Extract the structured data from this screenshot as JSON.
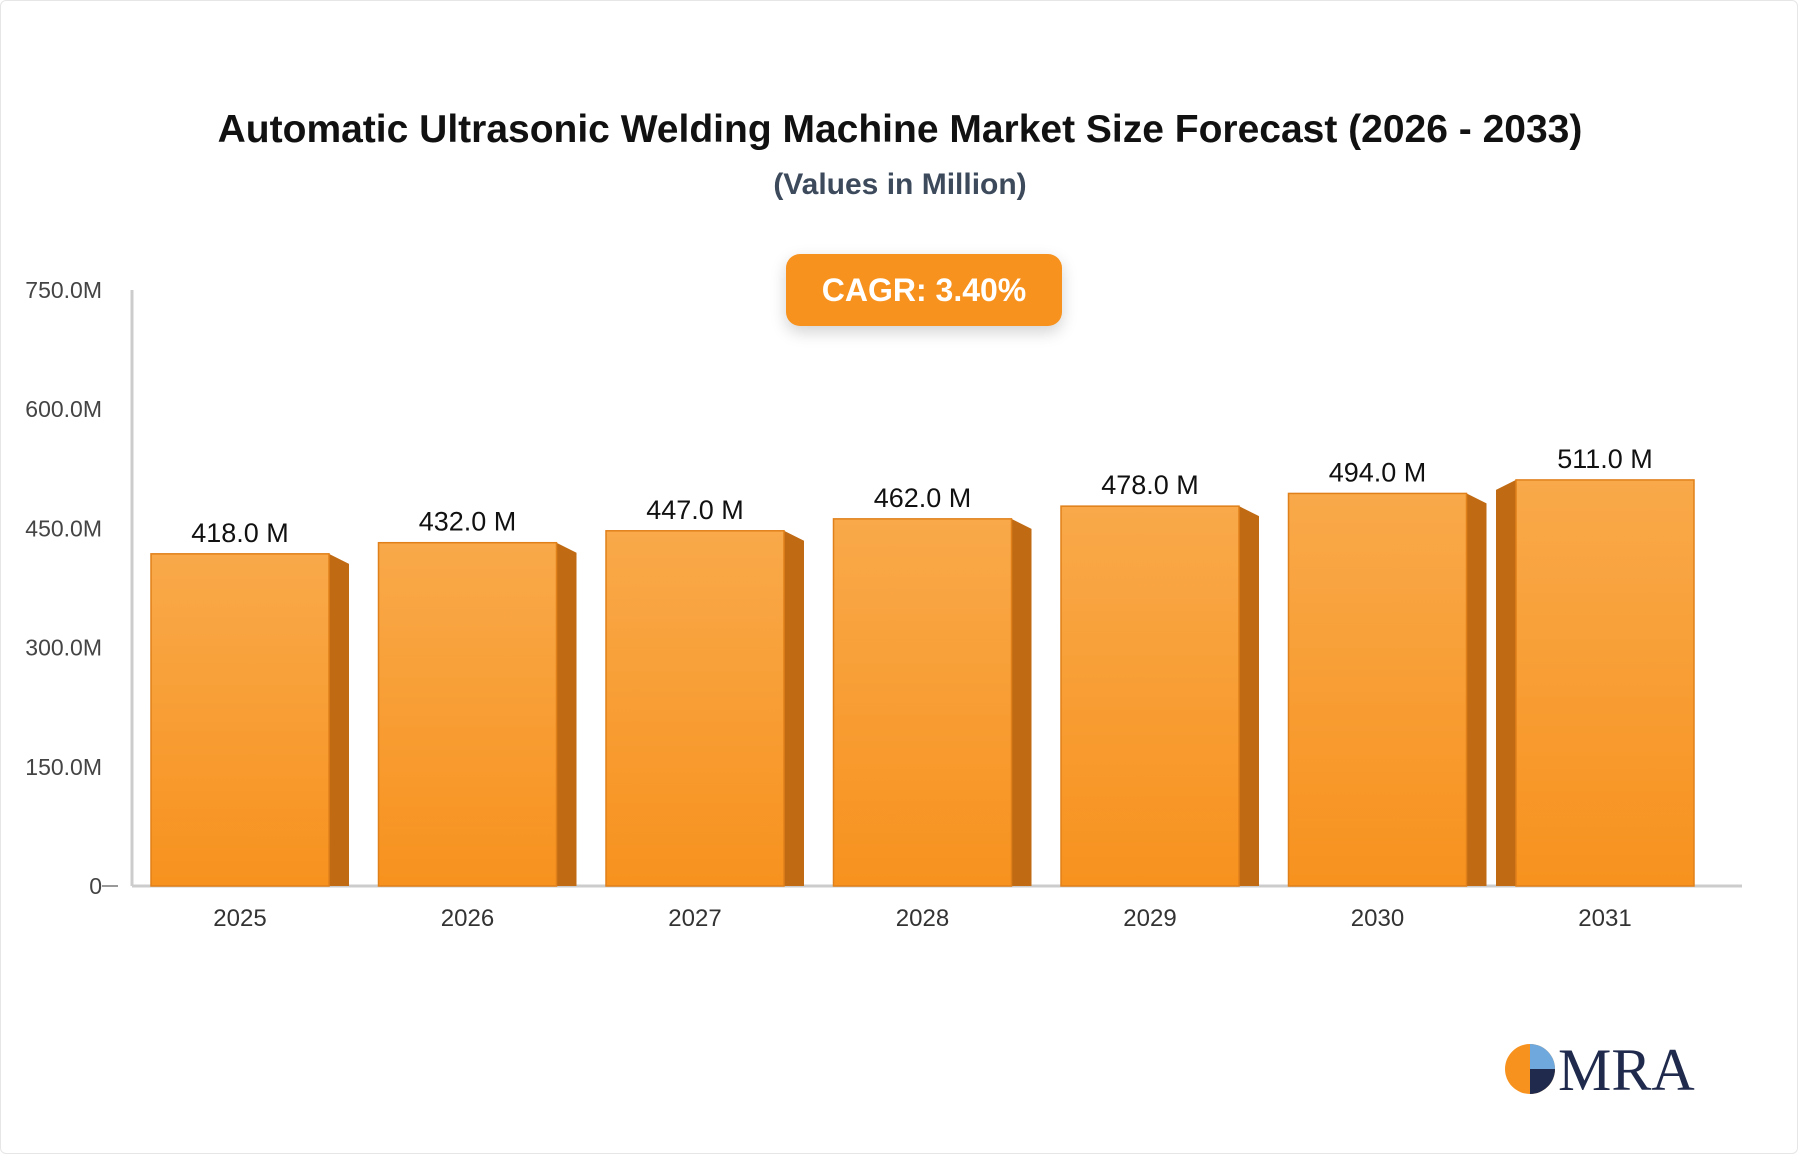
{
  "chart_data": {
    "type": "bar",
    "title": "Automatic Ultrasonic Welding Machine Market Size Forecast (2026 - 2033)",
    "subtitle": "(Values in Million)",
    "annotation": "CAGR: 3.40%",
    "categories": [
      "2025",
      "2026",
      "2027",
      "2028",
      "2029",
      "2030",
      "2031"
    ],
    "values": [
      418.0,
      432.0,
      447.0,
      462.0,
      478.0,
      494.0,
      511.0
    ],
    "data_labels": [
      "418.0 M",
      "432.0 M",
      "447.0 M",
      "462.0 M",
      "478.0 M",
      "494.0 M",
      "511.0 M"
    ],
    "y_ticks": [
      0,
      150,
      300,
      450,
      600,
      750
    ],
    "y_tick_labels": [
      "0",
      "150.0M",
      "300.0M",
      "450.0M",
      "600.0M",
      "750.0M"
    ],
    "ylim": [
      0,
      750
    ],
    "xlabel": "",
    "ylabel": "",
    "grid": false,
    "colors": {
      "bar_front": "#f7941f",
      "bar_front_light": "#f9a94a",
      "bar_side": "#c06a13",
      "bar_edge": "#e0801a",
      "accent": "#f7921e"
    }
  },
  "logo": {
    "text": "MRA"
  }
}
